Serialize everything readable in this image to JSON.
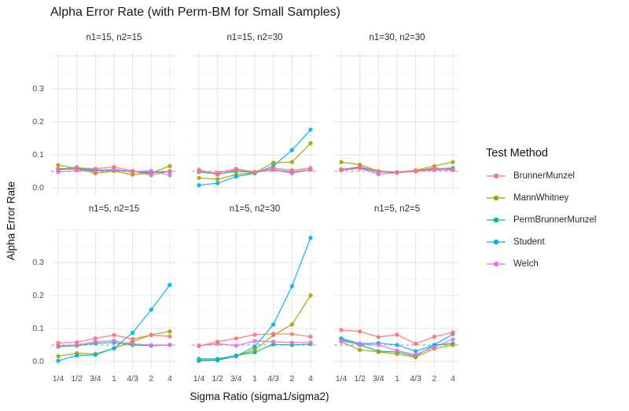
{
  "chart_data": {
    "type": "line",
    "title": "Alpha Error Rate (with Perm-BM for Small Samples)",
    "xlabel": "Sigma Ratio (sigma1/sigma2)",
    "ylabel": "Alpha Error Rate",
    "x_categories": [
      "1/4",
      "1/2",
      "3/4",
      "1",
      "4/3",
      "2",
      "4"
    ],
    "y_ticks": [
      0.0,
      0.1,
      0.2,
      0.3
    ],
    "y_tick_labels": [
      "0.0",
      "0.1",
      "0.2",
      "0.3"
    ],
    "ylim": [
      -0.02,
      0.41
    ],
    "grid": true,
    "reference_line_y": 0.05,
    "legend": {
      "title": "Test Method",
      "position": "right",
      "entries": [
        {
          "label": "BrunnerMunzel",
          "color": "#F8766D"
        },
        {
          "label": "MannWhitney",
          "color": "#A3A500"
        },
        {
          "label": "PermBrunnerMunzel",
          "color": "#00BF7D"
        },
        {
          "label": "Student",
          "color": "#00B0F6"
        },
        {
          "label": "Welch",
          "color": "#E76BF3"
        }
      ]
    },
    "facets": [
      {
        "label": "n1=15, n2=15",
        "series": [
          {
            "name": "BrunnerMunzel",
            "values": [
              0.058,
              0.06,
              0.058,
              0.063,
              0.051,
              0.038,
              0.051
            ]
          },
          {
            "name": "MannWhitney",
            "values": [
              0.069,
              0.059,
              0.044,
              0.051,
              0.04,
              0.045,
              0.066
            ]
          },
          {
            "name": "PermBrunnerMunzel",
            "values": [
              0.055,
              0.058,
              0.052,
              0.054,
              0.049,
              0.046,
              0.05
            ]
          },
          {
            "name": "Student",
            "values": [
              0.056,
              0.062,
              0.054,
              0.055,
              0.05,
              0.046,
              0.049
            ]
          },
          {
            "name": "Welch",
            "values": [
              0.048,
              0.053,
              0.05,
              0.056,
              0.049,
              0.051,
              0.038
            ]
          }
        ]
      },
      {
        "label": "n1=15, n2=30",
        "series": [
          {
            "name": "BrunnerMunzel",
            "values": [
              0.055,
              0.04,
              0.055,
              0.047,
              0.06,
              0.053,
              0.06
            ]
          },
          {
            "name": "MannWhitney",
            "values": [
              0.03,
              0.026,
              0.04,
              0.046,
              0.076,
              0.078,
              0.135
            ]
          },
          {
            "name": "PermBrunnerMunzel",
            "values": [
              0.048,
              0.042,
              0.05,
              0.047,
              0.055,
              0.048,
              0.055
            ]
          },
          {
            "name": "Student",
            "values": [
              0.008,
              0.014,
              0.034,
              0.044,
              0.066,
              0.114,
              0.176
            ]
          },
          {
            "name": "Welch",
            "values": [
              0.05,
              0.045,
              0.058,
              0.048,
              0.055,
              0.044,
              0.055
            ]
          }
        ]
      },
      {
        "label": "n1=30, n2=30",
        "series": [
          {
            "name": "BrunnerMunzel",
            "values": [
              0.056,
              0.064,
              0.05,
              0.047,
              0.051,
              0.06,
              0.056
            ]
          },
          {
            "name": "MannWhitney",
            "values": [
              0.078,
              0.07,
              0.051,
              0.047,
              0.053,
              0.066,
              0.078
            ]
          },
          {
            "name": "PermBrunnerMunzel",
            "values": [
              0.055,
              0.061,
              0.049,
              0.047,
              0.051,
              0.058,
              0.057
            ]
          },
          {
            "name": "Student",
            "values": [
              0.054,
              0.06,
              0.049,
              0.046,
              0.05,
              0.057,
              0.06
            ]
          },
          {
            "name": "Welch",
            "values": [
              0.053,
              0.059,
              0.041,
              0.046,
              0.05,
              0.054,
              0.054
            ]
          }
        ]
      },
      {
        "label": "n1=5, n2=15",
        "series": [
          {
            "name": "BrunnerMunzel",
            "values": [
              0.056,
              0.058,
              0.07,
              0.08,
              0.068,
              0.08,
              0.076
            ]
          },
          {
            "name": "MannWhitney",
            "values": [
              0.016,
              0.025,
              0.023,
              0.04,
              0.06,
              0.081,
              0.091
            ]
          },
          {
            "name": "PermBrunnerMunzel",
            "values": [
              0.045,
              0.048,
              0.055,
              0.058,
              0.05,
              0.048,
              0.05
            ]
          },
          {
            "name": "Student",
            "values": [
              0.002,
              0.018,
              0.02,
              0.04,
              0.087,
              0.157,
              0.232
            ]
          },
          {
            "name": "Welch",
            "values": [
              0.048,
              0.05,
              0.06,
              0.063,
              0.053,
              0.05,
              0.05
            ]
          }
        ]
      },
      {
        "label": "n1=5, n2=30",
        "series": [
          {
            "name": "BrunnerMunzel",
            "values": [
              0.047,
              0.06,
              0.07,
              0.081,
              0.084,
              0.083,
              0.075
            ]
          },
          {
            "name": "MannWhitney",
            "values": [
              0.004,
              0.004,
              0.017,
              0.035,
              0.08,
              0.112,
              0.2
            ]
          },
          {
            "name": "PermBrunnerMunzel",
            "values": [
              0.008,
              0.008,
              0.018,
              0.028,
              0.052,
              0.05,
              0.053
            ]
          },
          {
            "name": "Student",
            "values": [
              0.002,
              0.004,
              0.016,
              0.045,
              0.112,
              0.228,
              0.375
            ]
          },
          {
            "name": "Welch",
            "values": [
              0.048,
              0.054,
              0.048,
              0.062,
              0.06,
              0.057,
              0.058
            ]
          }
        ]
      },
      {
        "label": "n1=5, n2=5",
        "series": [
          {
            "name": "BrunnerMunzel",
            "values": [
              0.095,
              0.091,
              0.074,
              0.081,
              0.054,
              0.075,
              0.088
            ]
          },
          {
            "name": "MannWhitney",
            "values": [
              0.06,
              0.035,
              0.029,
              0.023,
              0.013,
              0.039,
              0.05
            ]
          },
          {
            "name": "PermBrunnerMunzel",
            "values": [
              0.067,
              0.05,
              0.031,
              0.029,
              0.016,
              0.05,
              0.054
            ]
          },
          {
            "name": "Student",
            "values": [
              0.07,
              0.054,
              0.056,
              0.05,
              0.031,
              0.05,
              0.083
            ]
          },
          {
            "name": "Welch",
            "values": [
              0.062,
              0.052,
              0.05,
              0.033,
              0.021,
              0.044,
              0.067
            ]
          }
        ]
      }
    ]
  },
  "style": {
    "grid_major_color": "#E3E3E3",
    "grid_minor_color": "#F1F1F1",
    "reference_line_color": "#9b9b9b",
    "tick_label_color": "#4d4d4d"
  }
}
